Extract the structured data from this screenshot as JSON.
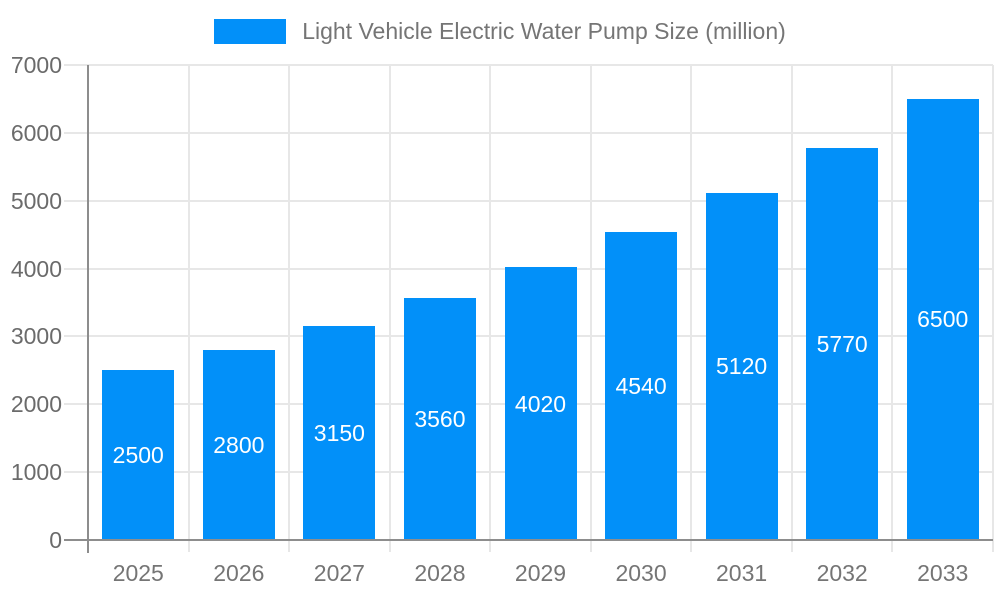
{
  "chart_data": {
    "type": "bar",
    "title": "Light Vehicle Electric Water Pump Size (million)",
    "categories": [
      "2025",
      "2026",
      "2027",
      "2028",
      "2029",
      "2030",
      "2031",
      "2032",
      "2033"
    ],
    "values": [
      2500,
      2800,
      3150,
      3560,
      4020,
      4540,
      5120,
      5770,
      6500
    ],
    "xlabel": "",
    "ylabel": "",
    "ylim": [
      0,
      7000
    ],
    "yticks": [
      0,
      1000,
      2000,
      3000,
      4000,
      5000,
      6000,
      7000
    ],
    "grid": true,
    "legend_position": "top",
    "colors": {
      "bar": "#0290f9",
      "value_label": "#ffffff",
      "grid_line": "#e7e7e7",
      "axis_line": "#8d8d8d",
      "y_tick_label": "#6b6b6b",
      "x_tick_label": "#757575",
      "legend_text": "#757575"
    }
  }
}
